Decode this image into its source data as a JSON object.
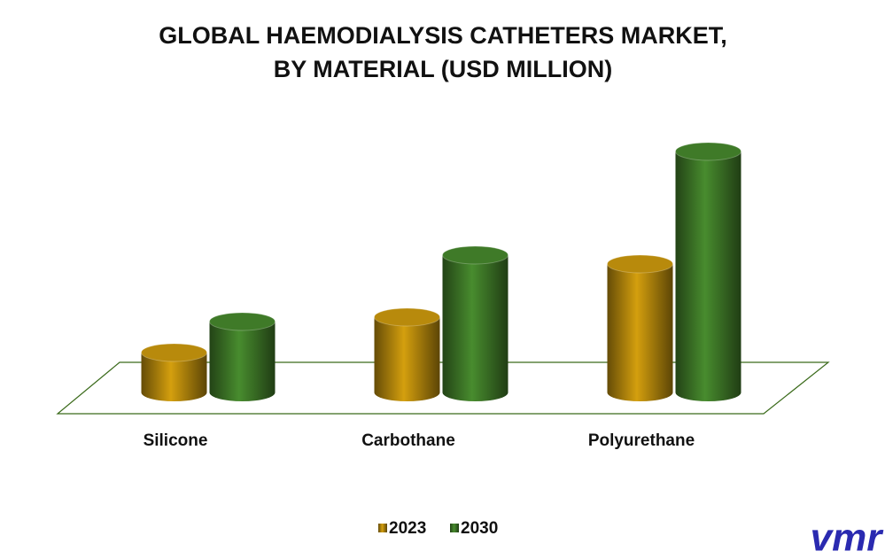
{
  "chart_data": {
    "type": "bar3d",
    "title": [
      "GLOBAL HAEMODIALYSIS CATHETERS MARKET,",
      "BY MATERIAL (USD MILLION)"
    ],
    "categories": [
      "Silicone",
      "Carbothane",
      "Polyurethane"
    ],
    "series": [
      {
        "name": "2023",
        "color": "#b88a0c",
        "values": [
          45,
          85,
          145
        ]
      },
      {
        "name": "2030",
        "color": "#3f7a28",
        "values": [
          80,
          155,
          272
        ]
      }
    ],
    "legend": "bottom"
  },
  "brand": "vmr"
}
